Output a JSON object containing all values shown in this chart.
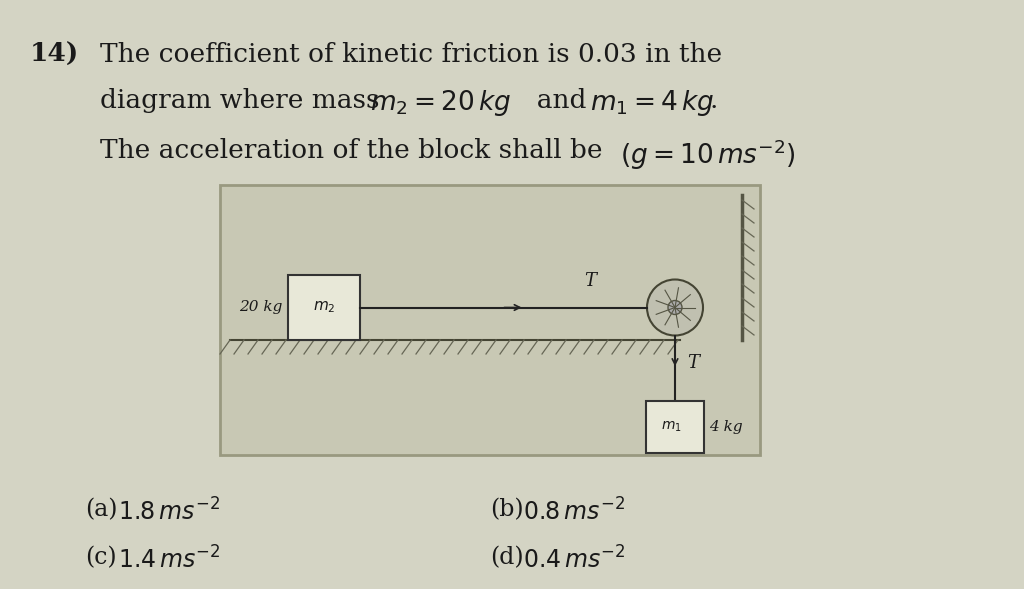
{
  "bg_color": "#d4d4c4",
  "text_color": "#1a1a1a",
  "diagram_bg": "#c8c8b4",
  "diagram_border": "#999980",
  "block_face": "#e8e8d8",
  "block_edge": "#333333",
  "rope_color": "#222222",
  "ground_color": "#888870",
  "title_num": "14)",
  "line1": "The coefficient of kinetic friction is 0.03 in the",
  "line2_a": "diagram where mass ",
  "line2_m2": "$m_2=20\\,kg$",
  "line2_b": " and ",
  "line2_m1": "$m_1=4\\,kg$",
  "line2_c": ".",
  "line3_a": "The acceleration of the block shall be ",
  "line3_b": "$(g=10\\,ms^{-2})$",
  "opt_a": "(a)",
  "opt_a_val": "$1.8\\,ms^{-2}$",
  "opt_b": "(b)",
  "opt_b_val": "$0.8\\,ms^{-2}$",
  "opt_c": "(c)",
  "opt_c_val": "$1.4\\,ms^{-2}$",
  "opt_d": "(d)",
  "opt_d_val": "$0.4\\,ms^{-2}$"
}
